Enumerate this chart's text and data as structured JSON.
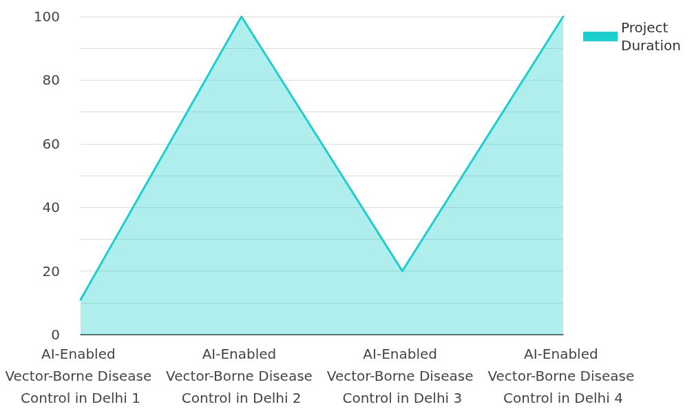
{
  "chart_data": {
    "type": "area",
    "categories": [
      "AI-Enabled Vector-Borne Disease Control in Delhi 1",
      "AI-Enabled Vector-Borne Disease Control in Delhi 2",
      "AI-Enabled Vector-Borne Disease Control in Delhi 3",
      "AI-Enabled Vector-Borne Disease Control in Delhi 4"
    ],
    "series": [
      {
        "name": "Project Duration",
        "color": "#1ccfcf",
        "values": [
          11,
          100,
          20,
          100
        ]
      }
    ],
    "ylim": [
      0,
      100
    ],
    "yticks": [
      0,
      {
        "value": 10,
        "label": null
      },
      20,
      {
        "value": 30,
        "label": null
      },
      40,
      {
        "value": 50,
        "label": null
      },
      60,
      {
        "value": 70,
        "label": null
      },
      80,
      {
        "value": 90,
        "label": null
      },
      100
    ],
    "grid": "y",
    "legend": "top right",
    "marker": "none",
    "line_style": "solid"
  }
}
